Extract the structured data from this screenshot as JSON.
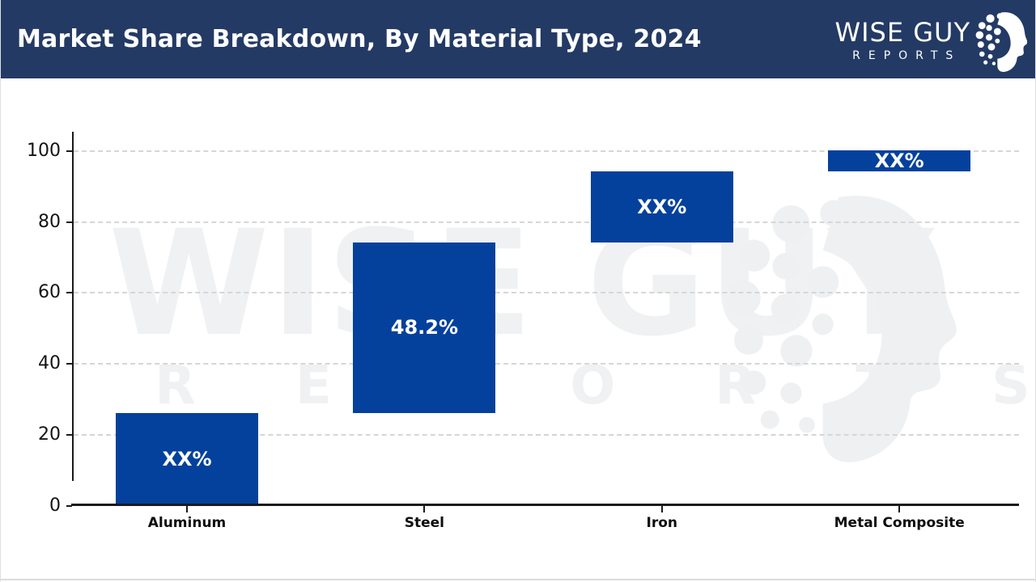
{
  "header": {
    "title": "Market Share Breakdown, By Material Type, 2024",
    "logo": {
      "line1": "WISE GUY",
      "line2": "REPORTS"
    }
  },
  "watermark": {
    "line1": "WISE GUY",
    "line2": "R E P O R T S"
  },
  "colors": {
    "header_bg": "#233a64",
    "bar_blue": "#04419c",
    "gridline": "#d6d6d6",
    "axis": "#1a1a1a",
    "watermark": "#f0f1f3",
    "bar_label": "#ffffff"
  },
  "chart_data": {
    "type": "bar",
    "subtype": "waterfall",
    "title": "Market Share Breakdown, By Material Type, 2024",
    "categories": [
      "Aluminum",
      "Steel",
      "Iron",
      "Metal Composite"
    ],
    "segments": [
      {
        "category": "Aluminum",
        "start": 0,
        "end": 26.1,
        "height": 26.1,
        "label": "XX%"
      },
      {
        "category": "Steel",
        "start": 26.1,
        "end": 74.3,
        "height": 48.2,
        "label": "48.2%"
      },
      {
        "category": "Iron",
        "start": 74.3,
        "end": 94.2,
        "height": 19.9,
        "label": "XX%"
      },
      {
        "category": "Metal Composite",
        "start": 94.2,
        "end": 100.3,
        "height": 6.1,
        "label": "XX%"
      }
    ],
    "xlabel": "",
    "ylabel": "",
    "ylim": [
      0,
      100
    ],
    "yticks": [
      0,
      20,
      40,
      60,
      80,
      100
    ],
    "grid": "horizontal-dashed",
    "legend": "none"
  }
}
